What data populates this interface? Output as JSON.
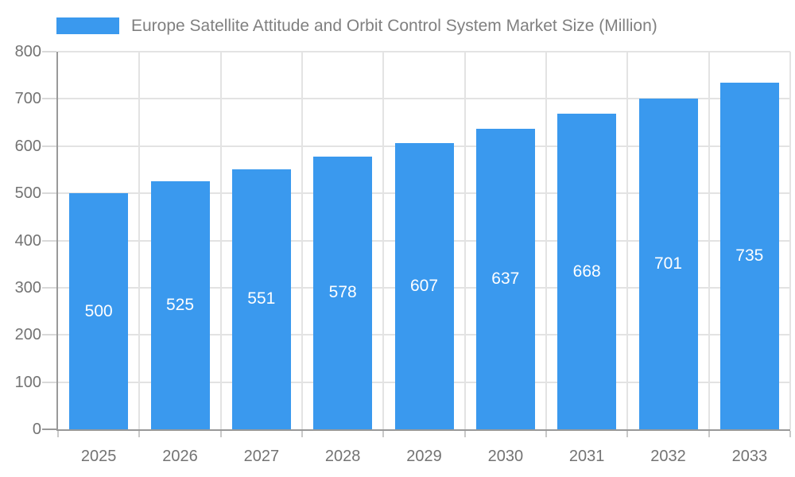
{
  "colors": {
    "bar": "#3A99EE",
    "grid": "#e3e3e3",
    "axis": "#999999",
    "y_tick": "#d9d9d9",
    "x_tick": "#c9c9c9",
    "tick_label_text": "#737373",
    "title_text": "#808080",
    "value_label_text": "#ffffff",
    "background": "#ffffff"
  },
  "chart_data": {
    "type": "bar",
    "title": "Europe Satellite Attitude and Orbit Control System Market Size (Million)",
    "categories": [
      "2025",
      "2026",
      "2027",
      "2028",
      "2029",
      "2030",
      "2031",
      "2032",
      "2033"
    ],
    "values": [
      500,
      525,
      551,
      578,
      607,
      637,
      668,
      701,
      735
    ],
    "xlabel": "",
    "ylabel": "",
    "ylim": [
      0,
      800
    ],
    "ytick_step": 100,
    "grid": true,
    "legend_position": "top-left",
    "value_labels": "inside-center"
  }
}
